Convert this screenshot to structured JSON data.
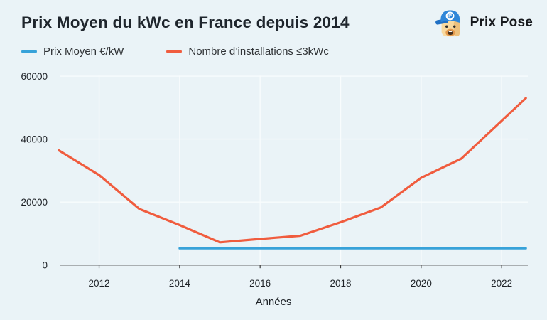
{
  "header": {
    "title": "Prix Moyen du kWc en France depuis 2014"
  },
  "logo": {
    "text": "Prix Pose",
    "icon": "mascot-face-with-blue-cap"
  },
  "legend": [
    {
      "label": "Prix Moyen €/kW",
      "color": "#37a2d9"
    },
    {
      "label": "Nombre d’installations ≤3kWc",
      "color": "#f05c3e"
    }
  ],
  "colors": {
    "background": "#eaf3f7",
    "gridline": "#f8fcfd",
    "axis": "#3d3d3d",
    "blue_series": "#37a2d9",
    "orange_series": "#f05c3e"
  },
  "chart_data": {
    "type": "line",
    "title": "Prix Moyen du kWc en France depuis 2014",
    "xlabel": "Années",
    "ylabel": "",
    "xticks": [
      2012,
      2014,
      2016,
      2018,
      2020,
      2022
    ],
    "yticks": [
      0,
      20000,
      40000,
      60000
    ],
    "xlim": [
      2011.02,
      2022.65
    ],
    "ylim": [
      0,
      61500
    ],
    "grid": true,
    "legend_position": "top-left",
    "series": [
      {
        "name": "Prix Moyen €/kW",
        "color": "#37a2d9",
        "x": [
          2014,
          2022.6
        ],
        "values": [
          5300,
          5300
        ]
      },
      {
        "name": "Nombre d’installations ≤3kWc",
        "color": "#f05c3e",
        "x": [
          2011,
          2012,
          2013,
          2014,
          2015,
          2016,
          2017,
          2018,
          2019,
          2020,
          2021,
          2022.6
        ],
        "values": [
          36400,
          28600,
          17800,
          12700,
          7200,
          8300,
          9300,
          13600,
          18300,
          27700,
          33800,
          53000
        ]
      }
    ]
  }
}
